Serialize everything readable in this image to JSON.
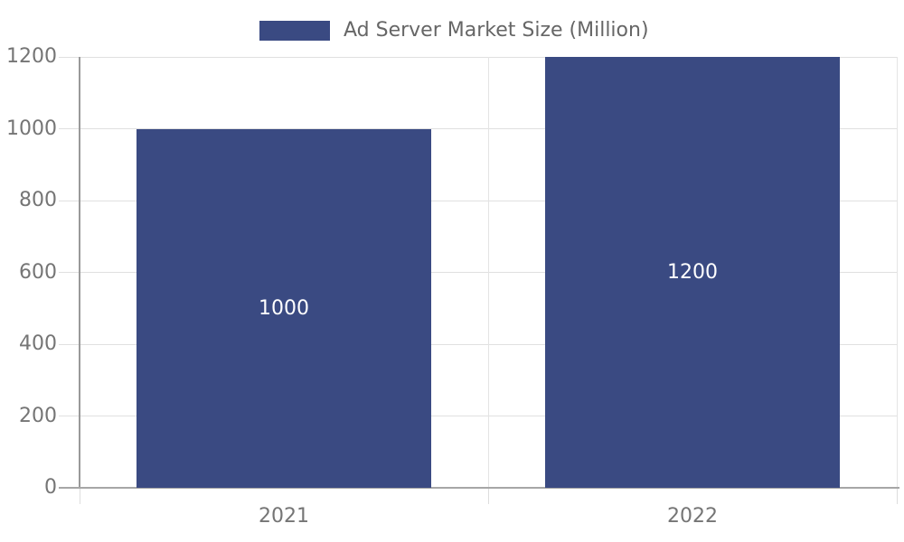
{
  "legend": {
    "label": "Ad Server Market Size (Million)",
    "swatch_color": "#3a4a82",
    "text_color": "#666666"
  },
  "chart_data": {
    "type": "bar",
    "title": "Ad Server Market Size (Million)",
    "categories": [
      "2021",
      "2022"
    ],
    "series": [
      {
        "name": "Ad Server Market Size (Million)",
        "values": [
          1000,
          1200
        ],
        "color": "#3a4a82"
      }
    ],
    "bar_value_labels": [
      "1000",
      "1200"
    ],
    "bar_value_label_color": "#ffffff",
    "xlabel": "",
    "ylabel": "",
    "ylim": [
      0,
      1200
    ],
    "yticks": [
      0,
      200,
      400,
      600,
      800,
      1000,
      1200
    ],
    "ytick_labels": [
      "0",
      "200",
      "400",
      "600",
      "800",
      "1000",
      "1200"
    ],
    "grid": true,
    "gridline_color": "#e0e0e0",
    "axis_line_color": "#999999",
    "tick_label_color": "#757575",
    "legend_position": "top",
    "background_color": "#ffffff"
  }
}
